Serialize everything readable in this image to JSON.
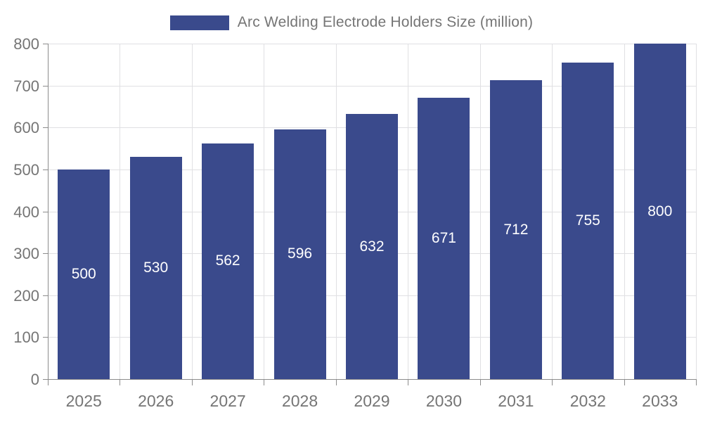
{
  "chart_data": {
    "type": "bar",
    "title": "Arc Welding Electrode Holders Size (million)",
    "categories": [
      "2025",
      "2026",
      "2027",
      "2028",
      "2029",
      "2030",
      "2031",
      "2032",
      "2033"
    ],
    "values": [
      500,
      530,
      562,
      596,
      632,
      671,
      712,
      755,
      800
    ],
    "xlabel": "",
    "ylabel": "",
    "ylim": [
      0,
      800
    ],
    "ytick_step": 100,
    "ytick_labels": [
      "0",
      "100",
      "200",
      "300",
      "400",
      "500",
      "600",
      "700",
      "800"
    ],
    "grid": true,
    "legend_position": "top-center",
    "value_labels_shown": true,
    "colors": {
      "bar": "#3a4a8c",
      "grid": "#e0e0e3",
      "axis": "#8c8c8c",
      "tick_label": "#757575",
      "legend_text": "#757575",
      "value_label": "#ffffff",
      "background": "#ffffff"
    }
  }
}
